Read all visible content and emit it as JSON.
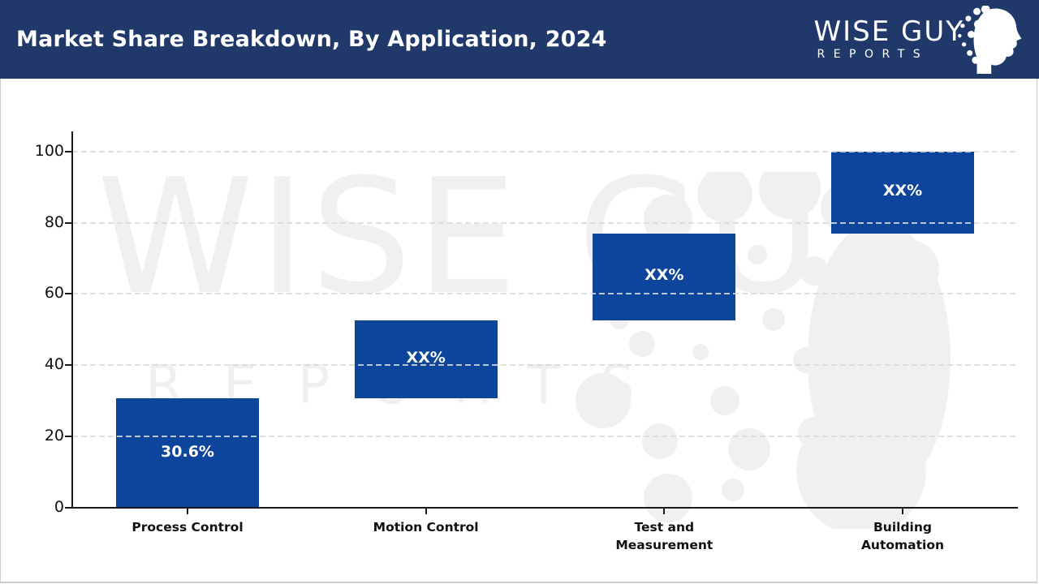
{
  "header": {
    "title": "Market Share Breakdown, By Application, 2024",
    "logo_word": "WISE GUY",
    "logo_subtitle": "REPORTS"
  },
  "watermark": {
    "line1": "WISE GU",
    "line2": "REPORTS"
  },
  "chart_data": {
    "type": "bar",
    "subtype": "waterfall-floating-bars",
    "title": "Market Share Breakdown, By Application, 2024",
    "categories": [
      "Process Control",
      "Motion Control",
      "Test and Measurement",
      "Building Automation"
    ],
    "category_label_lines": [
      [
        "Process Control"
      ],
      [
        "Motion Control"
      ],
      [
        "Test and",
        "Measurement"
      ],
      [
        "Building",
        "Automation"
      ]
    ],
    "segments": [
      {
        "category": "Process Control",
        "start": 0,
        "end": 30.6,
        "label": "30.6%"
      },
      {
        "category": "Motion Control",
        "start": 30.6,
        "end": 52.6,
        "label": "XX%"
      },
      {
        "category": "Test and Measurement",
        "start": 52.6,
        "end": 77,
        "label": "XX%"
      },
      {
        "category": "Building Automation",
        "start": 77,
        "end": 100,
        "label": "XX%"
      }
    ],
    "yticks": [
      0,
      20,
      40,
      60,
      80,
      100
    ],
    "ylim": [
      0,
      106
    ],
    "xlabel": "",
    "ylabel": "",
    "grid": "horizontal-dashed-over-bars",
    "legend": false
  },
  "colors": {
    "header_bg": "#20396a",
    "bar": "#0d459c",
    "bar_label": "#ffffff",
    "grid": "#dadada",
    "axis": "#1a1a1a",
    "tick_text": "#111111",
    "watermark": "#f0f0f0",
    "page_border": "#cccccc"
  }
}
